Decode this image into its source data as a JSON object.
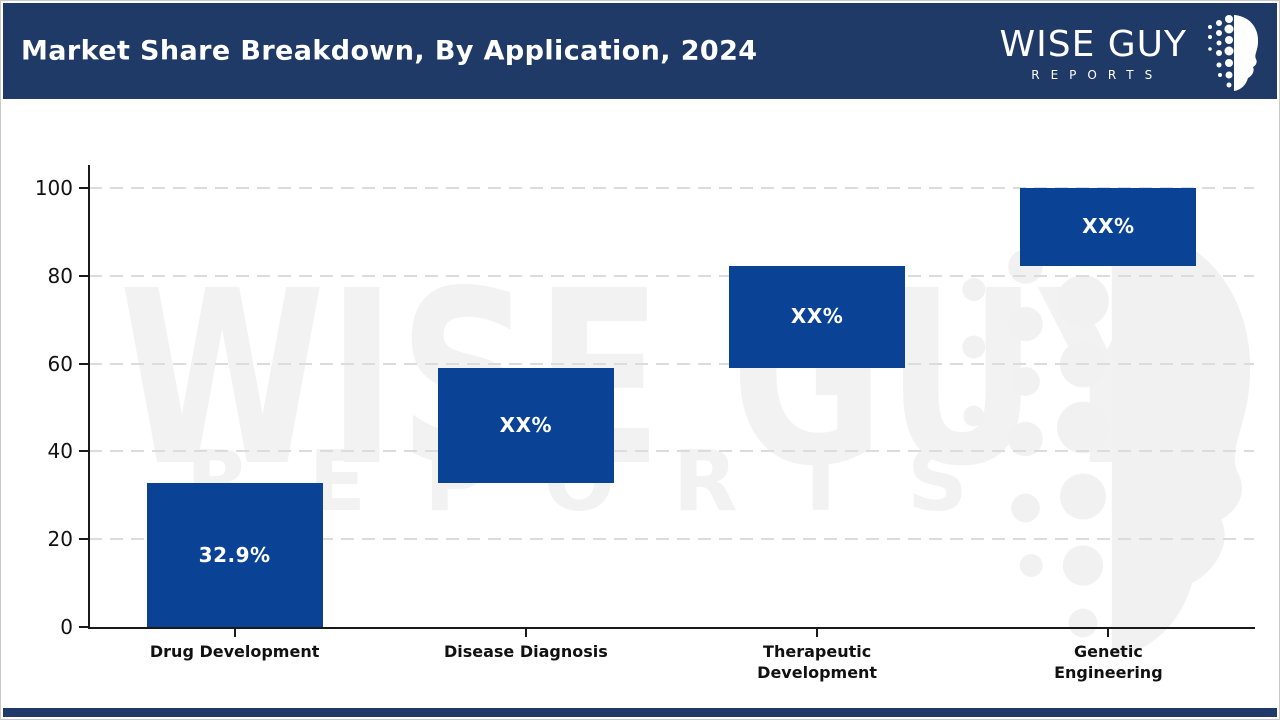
{
  "header": {
    "title": "Market Share Breakdown, By Application, 2024",
    "logo": {
      "line1": "WISE GUY",
      "line2": "REPORTS"
    }
  },
  "watermark": {
    "line1": "WISE GUY",
    "line2": "REPORTS"
  },
  "colors": {
    "header_bg": "#1f3a67",
    "footer_bg": "#1f3a67",
    "bar": "#0a4296",
    "grid": "#dcdcdc",
    "axis": "#1a1a1a",
    "text": "#111111",
    "watermark": "#f2f2f2"
  },
  "chart_data": {
    "type": "bar",
    "subtype": "waterfall-floating-bars",
    "title": "Market Share Breakdown, By Application, 2024",
    "categories": [
      "Drug Development",
      "Disease Diagnosis",
      "Therapeutic Development",
      "Genetic Engineering"
    ],
    "category_display_labels": [
      "Drug Development",
      "Disease Diagnosis",
      "Therapeutic\nDevelopment",
      "Genetic\nEngineering"
    ],
    "segments": [
      {
        "category": "Drug Development",
        "start": 0,
        "end": 32.9,
        "value": 32.9,
        "label": "32.9%"
      },
      {
        "category": "Disease Diagnosis",
        "start": 32.9,
        "end": 59.1,
        "value": 26.2,
        "label": "XX%"
      },
      {
        "category": "Therapeutic Development",
        "start": 59.1,
        "end": 82.3,
        "value": 23.2,
        "label": "XX%"
      },
      {
        "category": "Genetic Engineering",
        "start": 82.3,
        "end": 100,
        "value": 17.7,
        "label": "XX%"
      }
    ],
    "xlabel": "",
    "ylabel": "",
    "ylim": [
      0,
      100
    ],
    "y_ticks": [
      0,
      20,
      40,
      60,
      80,
      100
    ],
    "grid": "horizontal-dashed",
    "legend": "none"
  }
}
